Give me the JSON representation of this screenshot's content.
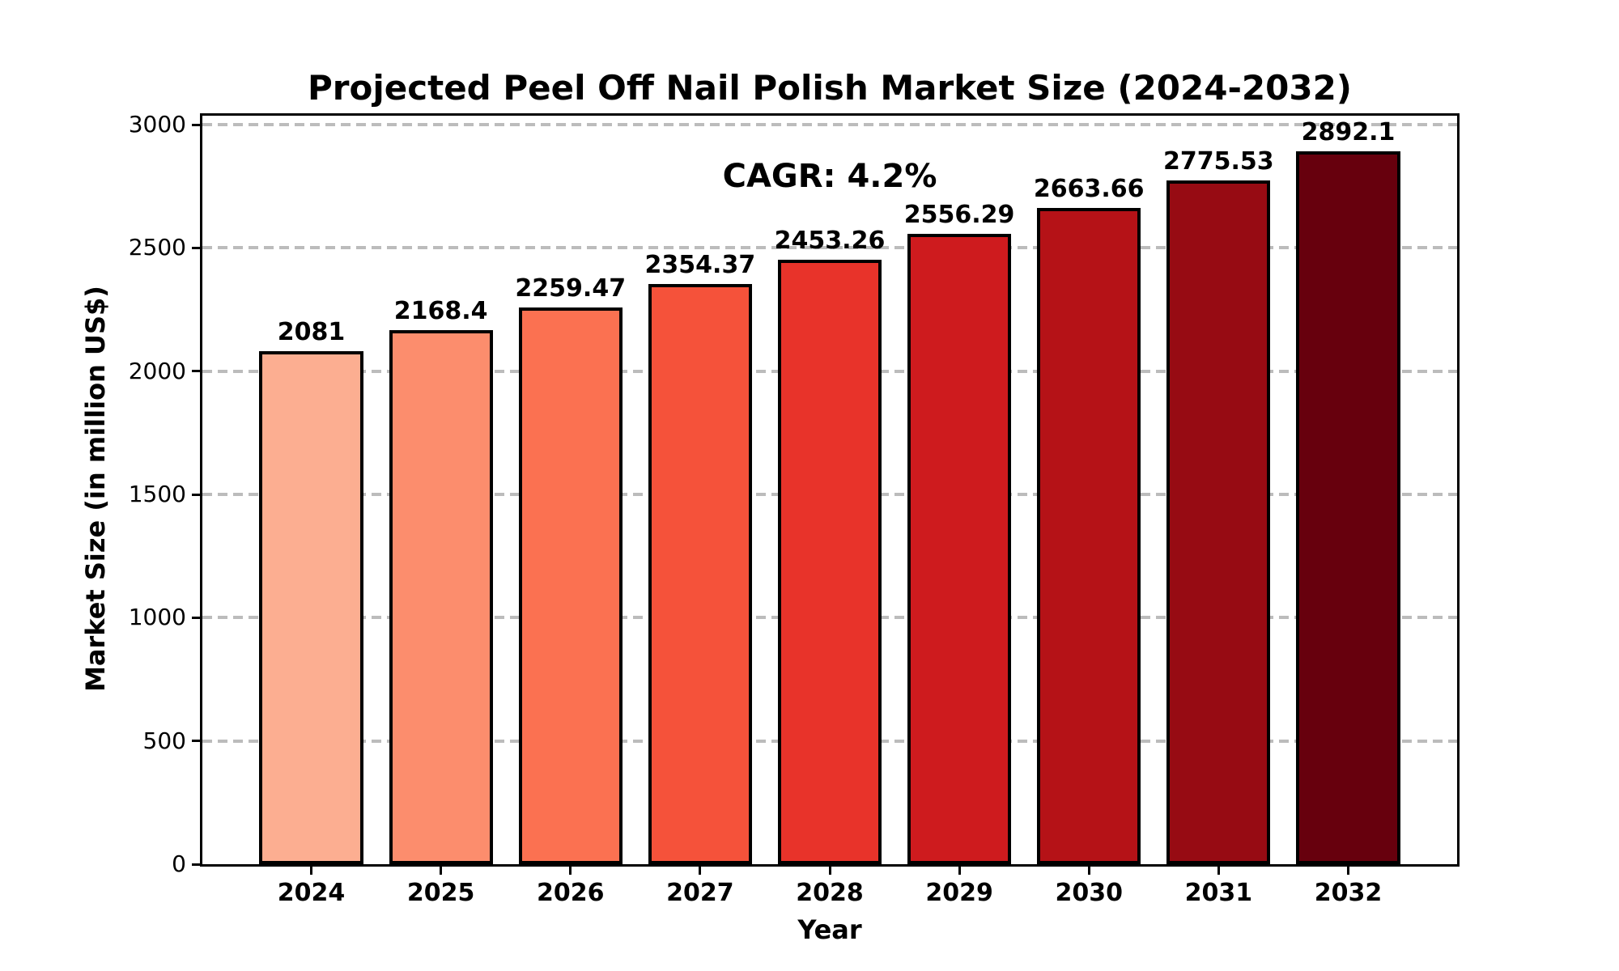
{
  "chart_data": {
    "type": "bar",
    "title": "Projected Peel Off Nail Polish Market Size (2024-2032)",
    "xlabel": "Year",
    "ylabel": "Market Size (in million US$)",
    "annotation": "CAGR: 4.2%",
    "categories": [
      "2024",
      "2025",
      "2026",
      "2027",
      "2028",
      "2029",
      "2030",
      "2031",
      "2032"
    ],
    "values": [
      2081,
      2168.4,
      2259.47,
      2354.37,
      2453.26,
      2556.29,
      2663.66,
      2775.53,
      2892.1
    ],
    "bar_labels": [
      "2081",
      "2168.4",
      "2259.47",
      "2354.37",
      "2453.26",
      "2556.29",
      "2663.66",
      "2775.53",
      "2892.1"
    ],
    "bar_colors": [
      "#fcae91",
      "#fc8d6d",
      "#fb7151",
      "#f5523a",
      "#e8332a",
      "#ce1b1e",
      "#b51217",
      "#970b13",
      "#67000d"
    ],
    "bar_edge_color": "#000000",
    "yticks": [
      0,
      500,
      1000,
      1500,
      2000,
      2500,
      3000
    ],
    "ylim": [
      0,
      3036.7
    ],
    "grid": "horizontal-dashed",
    "grid_color": "#bcbcbc",
    "background_color": "#ffffff",
    "legend": "none"
  }
}
